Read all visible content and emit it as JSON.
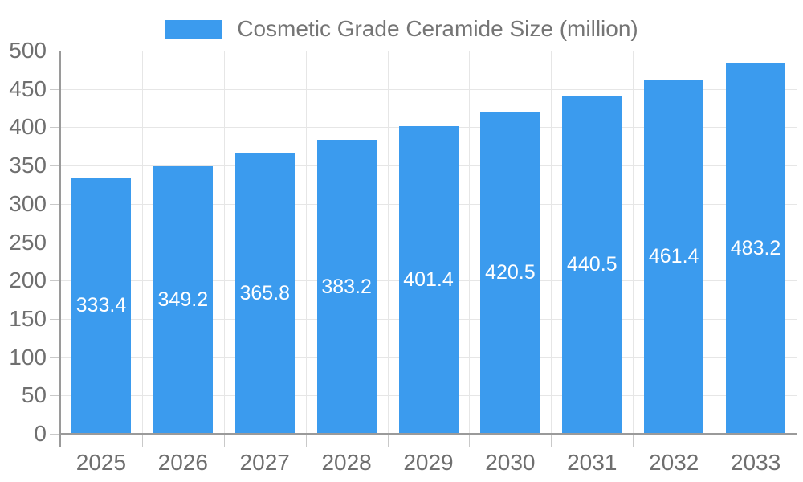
{
  "legend": {
    "label": "Cosmetic Grade Ceramide Size (million)"
  },
  "chart_data": {
    "type": "bar",
    "title": "Cosmetic Grade Ceramide Size (million)",
    "categories": [
      "2025",
      "2026",
      "2027",
      "2028",
      "2029",
      "2030",
      "2031",
      "2032",
      "2033"
    ],
    "values": [
      333.4,
      349.2,
      365.8,
      383.2,
      401.4,
      420.5,
      440.5,
      461.4,
      483.2
    ],
    "value_labels": [
      "333.4",
      "349.2",
      "365.8",
      "383.2",
      "401.4",
      "420.5",
      "440.5",
      "461.4",
      "483.2"
    ],
    "xlabel": "",
    "ylabel": "",
    "ylim": [
      0,
      500
    ],
    "yticks": [
      0,
      50,
      100,
      150,
      200,
      250,
      300,
      350,
      400,
      450,
      500
    ],
    "grid": true,
    "legend_position": "top-center",
    "value_label_position": "inside-center",
    "colors": {
      "bar": "#3b9bee",
      "bar_value_label": "#ffffff",
      "axis_line": "#9a9a9a",
      "gridline": "#e6e6e6",
      "tick_mark": "#c9c9c9",
      "tick_label": "#6f6f6f",
      "legend_text": "#757575",
      "background": "#ffffff"
    }
  }
}
